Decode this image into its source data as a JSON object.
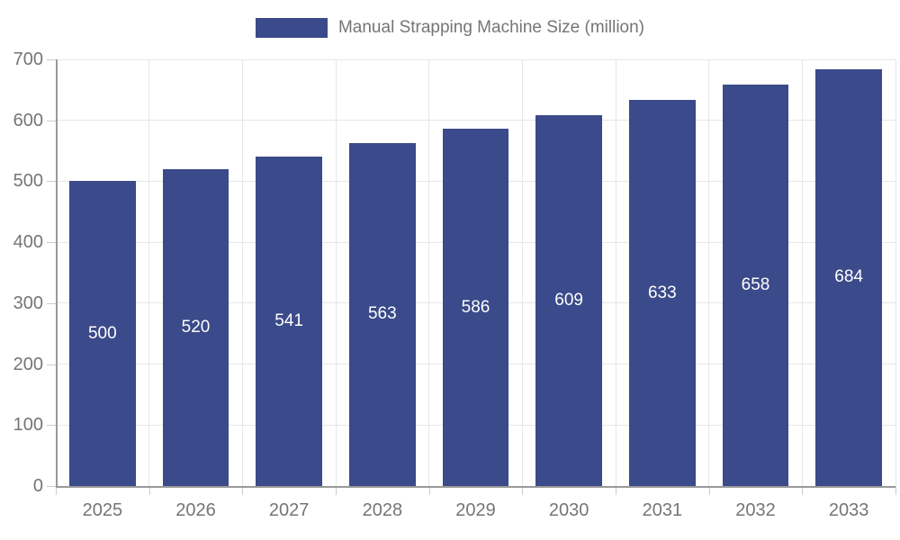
{
  "legend": {
    "label": "Manual Strapping Machine Size (million)"
  },
  "chart_data": {
    "type": "bar",
    "title": "Manual Strapping Machine Size (million)",
    "categories": [
      "2025",
      "2026",
      "2027",
      "2028",
      "2029",
      "2030",
      "2031",
      "2032",
      "2033"
    ],
    "series": [
      {
        "name": "Manual Strapping Machine Size (million)",
        "values": [
          500,
          520,
          541,
          563,
          586,
          609,
          633,
          658,
          684
        ]
      }
    ],
    "xlabel": "",
    "ylabel": "",
    "ylim": [
      0,
      700
    ],
    "yticks": [
      0,
      100,
      200,
      300,
      400,
      500,
      600,
      700
    ],
    "grid": true,
    "legend_position": "top",
    "value_labels": "inside-center",
    "colors": {
      "bar": "#3a4a8a",
      "value_label": "#ffffff",
      "axis_text": "#757575",
      "grid_line": "#e6e6e6",
      "axis_line": "#999999",
      "tick_line": "#cccccc",
      "background": "#ffffff"
    }
  }
}
